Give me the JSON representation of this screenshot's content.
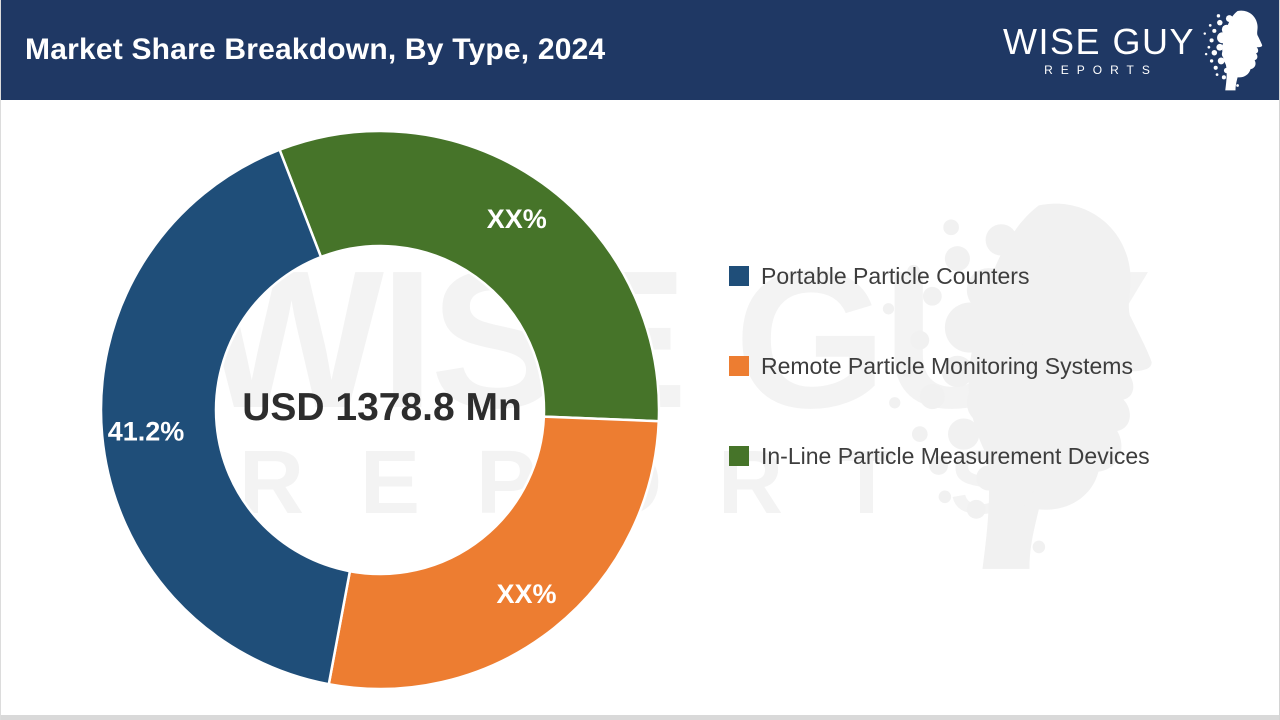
{
  "header": {
    "title": "Market Share Breakdown, By Type, 2024",
    "bg_color": "#1F3864",
    "logo": {
      "line1": "WISE GUY",
      "line2": "REPORTS"
    }
  },
  "watermark": {
    "line1": "WISE GUY",
    "line2": "REPORTS"
  },
  "chart_data": {
    "type": "pie",
    "subtype": "donut",
    "title": "Market Share Breakdown, By Type, 2024",
    "center_label": "USD 1378.8 Mn",
    "start_angle_deg_clockwise_from_top": -21.1,
    "legend_position": "right",
    "segments": [
      {
        "id": "in-line-particle-measurement-devices",
        "name": "In-Line Particle Measurement Devices",
        "displayed_label": "XX%",
        "arc_pct_estimated": 31.5,
        "color": "#467429"
      },
      {
        "id": "remote-particle-monitoring-systems",
        "name": "Remote Particle Monitoring Systems",
        "displayed_label": "XX%",
        "arc_pct_estimated": 27.3,
        "color": "#ED7D31"
      },
      {
        "id": "portable-particle-counters",
        "name": "Portable Particle Counters",
        "displayed_label": "41.2%",
        "value_pct": 41.2,
        "arc_pct_estimated": 41.2,
        "color": "#1F4E79"
      }
    ]
  },
  "legend": {
    "items": [
      {
        "label": "Portable Particle Counters",
        "color": "#1F4E79"
      },
      {
        "label": "Remote Particle Monitoring Systems",
        "color": "#ED7D31"
      },
      {
        "label": "In-Line Particle Measurement Devices",
        "color": "#467429"
      }
    ]
  },
  "colors": {
    "header_bg": "#1F3864",
    "blue": "#1F4E79",
    "orange": "#ED7D31",
    "green": "#467429",
    "watermark": "#f3f3f3",
    "bottom_strip": "#d9d9d9"
  }
}
